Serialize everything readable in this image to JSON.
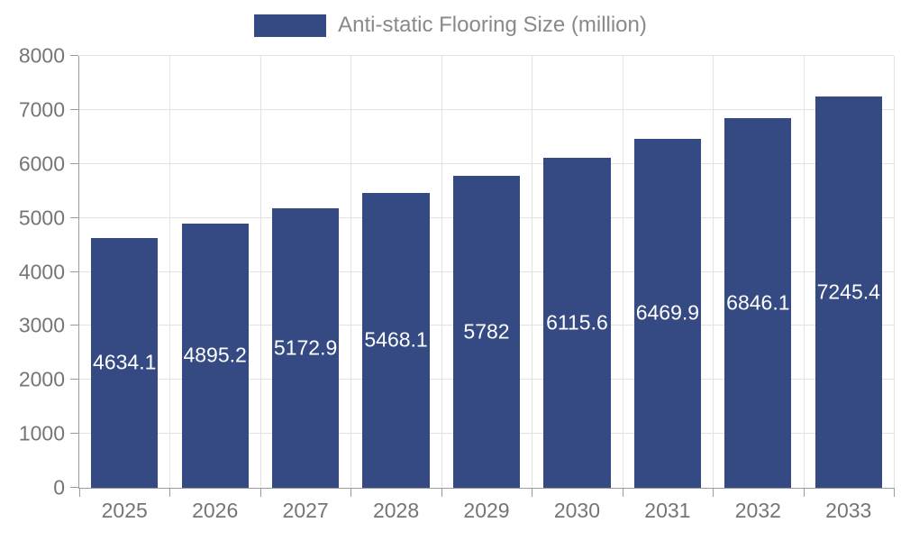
{
  "legend": {
    "label": "Anti-static Flooring Size (million)"
  },
  "colors": {
    "bar": "#354A83",
    "grid": "#E3E3E3",
    "axis": "#9B9B9B",
    "tick_text": "#757575",
    "legend_text": "#898989",
    "bar_label": "#FFFFFF",
    "background": "#FFFFFF"
  },
  "chart_data": {
    "type": "bar",
    "title": "Anti-static Flooring Size (million)",
    "categories": [
      "2025",
      "2026",
      "2027",
      "2028",
      "2029",
      "2030",
      "2031",
      "2032",
      "2033"
    ],
    "values": [
      4634.1,
      4895.2,
      5172.9,
      5468.1,
      5782,
      6115.6,
      6469.9,
      6846.1,
      7245.4
    ],
    "value_labels": [
      "4634.1",
      "4895.2",
      "5172.9",
      "5468.1",
      "5782",
      "6115.6",
      "6469.9",
      "6846.1",
      "7245.4"
    ],
    "xlabel": "",
    "ylabel": "",
    "ylim": [
      0,
      8000
    ],
    "y_ticks": [
      0,
      1000,
      2000,
      3000,
      4000,
      5000,
      6000,
      7000,
      8000
    ],
    "grid": true,
    "legend_position": "top-center",
    "bar_label_position": "inside-center"
  }
}
